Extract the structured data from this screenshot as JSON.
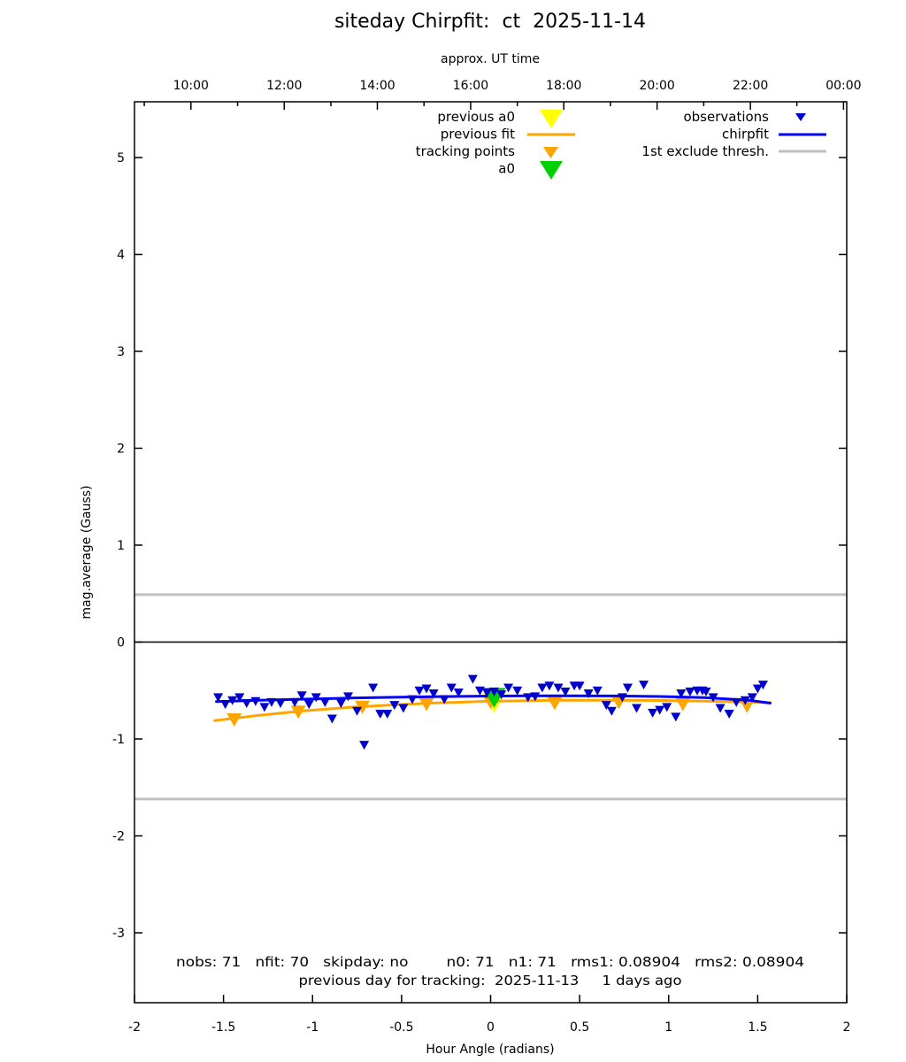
{
  "header": {
    "title": "siteday Chirpfit:  ct  2025-11-14"
  },
  "stats": {
    "line1": "nobs: 71   nfit: 70   skipday: no        n0: 71   n1: 71   rms1: 0.08904   rms2: 0.08904",
    "line2": "previous day for tracking:  2025-11-13     1 days ago"
  },
  "legend": {
    "col1": [
      {
        "label": "previous a0"
      },
      {
        "label": "previous fit"
      },
      {
        "label": "tracking points"
      },
      {
        "label": "a0"
      }
    ],
    "col2": [
      {
        "label": "observations"
      },
      {
        "label": "chirpfit"
      },
      {
        "label": "1st exclude thresh."
      }
    ]
  },
  "colors": {
    "observations": "#0000cc",
    "chirpfit": "#0000ff",
    "previous_fit": "#ffa500",
    "tracking_points": "#ffa500",
    "previous_a0": "#ffff00",
    "a0": "#00d000",
    "threshold": "#c0c0c0",
    "zero_line": "#000000",
    "axis": "#000000"
  },
  "chart_data": {
    "type": "scatter",
    "title": "siteday Chirpfit:  ct  2025-11-14",
    "grid": false,
    "legend_position": "top-inside",
    "x_axis": {
      "label": "Hour Angle (radians)",
      "range": [
        -2,
        2
      ],
      "ticks": [
        -2,
        -1.5,
        -1,
        -0.5,
        0,
        0.5,
        1,
        1.5,
        2
      ],
      "tick_labels": [
        "-2",
        "-1.5",
        "-1",
        "-0.5",
        "0",
        "0.5",
        "1",
        "1.5",
        "2"
      ]
    },
    "x2_axis": {
      "label": "approx. UT time",
      "major_ticks": [
        {
          "label": "10:00",
          "ha": -1.683
        },
        {
          "label": "12:00",
          "ha": -1.159
        },
        {
          "label": "14:00",
          "ha": -0.636
        },
        {
          "label": "16:00",
          "ha": -0.112
        },
        {
          "label": "18:00",
          "ha": 0.411
        },
        {
          "label": "20:00",
          "ha": 0.935
        },
        {
          "label": "22:00",
          "ha": 1.459
        },
        {
          "label": "00:00",
          "ha": 1.982
        }
      ],
      "minor_ticks_ha": [
        -1.945,
        -1.421,
        -0.897,
        -0.374,
        0.15,
        0.673,
        1.197,
        1.72
      ]
    },
    "y_axis": {
      "label": "mag.average (Gauss)",
      "range": [
        -3.73,
        5.58
      ],
      "ticks": [
        -3,
        -2,
        -1,
        0,
        1,
        2,
        3,
        4,
        5
      ],
      "tick_labels": [
        "-3",
        "-2",
        "-1",
        "0",
        "1",
        "2",
        "3",
        "4",
        "5"
      ]
    },
    "reference_lines": [
      {
        "name": "zero-line",
        "y": 0.0,
        "color_key": "zero_line",
        "width": 1.5
      },
      {
        "name": "exclude-threshold-upper",
        "y": 0.49,
        "color_key": "threshold",
        "width": 3
      },
      {
        "name": "exclude-threshold-lower",
        "y": -1.62,
        "color_key": "threshold",
        "width": 3
      }
    ],
    "series": [
      {
        "name": "previous a0",
        "kind": "points",
        "marker": "triangle-down",
        "size": "large",
        "color_key": "previous_a0",
        "points": [
          [
            0.02,
            -0.605
          ]
        ]
      },
      {
        "name": "previous fit",
        "kind": "line",
        "color_key": "previous_fit",
        "width": 3,
        "points": [
          [
            -1.55,
            -0.81
          ],
          [
            -1.3,
            -0.755
          ],
          [
            -1.05,
            -0.71
          ],
          [
            -0.8,
            -0.675
          ],
          [
            -0.55,
            -0.648
          ],
          [
            -0.3,
            -0.628
          ],
          [
            -0.05,
            -0.613
          ],
          [
            0.2,
            -0.605
          ],
          [
            0.45,
            -0.6
          ],
          [
            0.7,
            -0.6
          ],
          [
            0.95,
            -0.603
          ],
          [
            1.2,
            -0.61
          ],
          [
            1.45,
            -0.62
          ],
          [
            1.57,
            -0.625
          ]
        ]
      },
      {
        "name": "tracking points",
        "kind": "points",
        "marker": "triangle-down",
        "size": "medium",
        "color_key": "tracking_points",
        "points": [
          [
            -1.44,
            -0.79
          ],
          [
            -1.08,
            -0.71
          ],
          [
            -0.72,
            -0.66
          ],
          [
            -0.36,
            -0.63
          ],
          [
            0.0,
            -0.61
          ],
          [
            0.36,
            -0.62
          ],
          [
            0.72,
            -0.61
          ],
          [
            1.08,
            -0.63
          ],
          [
            1.44,
            -0.65
          ]
        ]
      },
      {
        "name": "chirpfit",
        "kind": "line",
        "color_key": "chirpfit",
        "width": 3,
        "points": [
          [
            -1.54,
            -0.615
          ],
          [
            -1.3,
            -0.601
          ],
          [
            -1.05,
            -0.589
          ],
          [
            -0.8,
            -0.578
          ],
          [
            -0.55,
            -0.57
          ],
          [
            -0.3,
            -0.563
          ],
          [
            -0.05,
            -0.558
          ],
          [
            0.2,
            -0.555
          ],
          [
            0.45,
            -0.554
          ],
          [
            0.7,
            -0.556
          ],
          [
            0.95,
            -0.562
          ],
          [
            1.2,
            -0.573
          ],
          [
            1.45,
            -0.6
          ],
          [
            1.57,
            -0.63
          ]
        ]
      },
      {
        "name": "a0",
        "kind": "points",
        "marker": "triangle-down",
        "size": "large",
        "color_key": "a0",
        "points": [
          [
            0.02,
            -0.555
          ]
        ]
      },
      {
        "name": "observations",
        "kind": "points",
        "marker": "triangle-down",
        "size": "small",
        "color_key": "observations",
        "points": [
          [
            -1.53,
            -0.57
          ],
          [
            -1.49,
            -0.64
          ],
          [
            -1.45,
            -0.6
          ],
          [
            -1.41,
            -0.57
          ],
          [
            -1.37,
            -0.63
          ],
          [
            -1.32,
            -0.61
          ],
          [
            -1.27,
            -0.67
          ],
          [
            -1.23,
            -0.62
          ],
          [
            -1.18,
            -0.63
          ],
          [
            -1.1,
            -0.62
          ],
          [
            -1.06,
            -0.55
          ],
          [
            -1.02,
            -0.64
          ],
          [
            -0.98,
            -0.57
          ],
          [
            -0.93,
            -0.62
          ],
          [
            -0.89,
            -0.79
          ],
          [
            -0.84,
            -0.63
          ],
          [
            -0.8,
            -0.56
          ],
          [
            -0.75,
            -0.71
          ],
          [
            -0.71,
            -1.06
          ],
          [
            -0.66,
            -0.47
          ],
          [
            -0.62,
            -0.74
          ],
          [
            -0.58,
            -0.74
          ],
          [
            -0.54,
            -0.65
          ],
          [
            -0.49,
            -0.68
          ],
          [
            -0.44,
            -0.59
          ],
          [
            -0.4,
            -0.5
          ],
          [
            -0.36,
            -0.48
          ],
          [
            -0.32,
            -0.53
          ],
          [
            -0.26,
            -0.59
          ],
          [
            -0.22,
            -0.47
          ],
          [
            -0.18,
            -0.52
          ],
          [
            -0.1,
            -0.38
          ],
          [
            -0.06,
            -0.5
          ],
          [
            -0.02,
            -0.52
          ],
          [
            0.02,
            -0.51
          ],
          [
            0.06,
            -0.54
          ],
          [
            0.1,
            -0.47
          ],
          [
            0.15,
            -0.5
          ],
          [
            0.21,
            -0.57
          ],
          [
            0.25,
            -0.56
          ],
          [
            0.29,
            -0.47
          ],
          [
            0.33,
            -0.45
          ],
          [
            0.38,
            -0.47
          ],
          [
            0.42,
            -0.51
          ],
          [
            0.47,
            -0.45
          ],
          [
            0.5,
            -0.45
          ],
          [
            0.55,
            -0.53
          ],
          [
            0.6,
            -0.5
          ],
          [
            0.65,
            -0.65
          ],
          [
            0.68,
            -0.71
          ],
          [
            0.74,
            -0.57
          ],
          [
            0.77,
            -0.47
          ],
          [
            0.82,
            -0.68
          ],
          [
            0.86,
            -0.44
          ],
          [
            0.91,
            -0.73
          ],
          [
            0.95,
            -0.7
          ],
          [
            0.99,
            -0.67
          ],
          [
            1.04,
            -0.77
          ],
          [
            1.07,
            -0.53
          ],
          [
            1.12,
            -0.51
          ],
          [
            1.16,
            -0.5
          ],
          [
            1.19,
            -0.5
          ],
          [
            1.21,
            -0.51
          ],
          [
            1.25,
            -0.57
          ],
          [
            1.29,
            -0.68
          ],
          [
            1.34,
            -0.74
          ],
          [
            1.38,
            -0.62
          ],
          [
            1.43,
            -0.6
          ],
          [
            1.47,
            -0.57
          ],
          [
            1.5,
            -0.48
          ],
          [
            1.53,
            -0.44
          ]
        ]
      }
    ],
    "annotations": {
      "nobs": 71,
      "nfit": 70,
      "skipday": "no",
      "n0": 71,
      "n1": 71,
      "rms1": 0.08904,
      "rms2": 0.08904,
      "previous_day_for_tracking": "2025-11-13",
      "days_ago": 1
    }
  }
}
